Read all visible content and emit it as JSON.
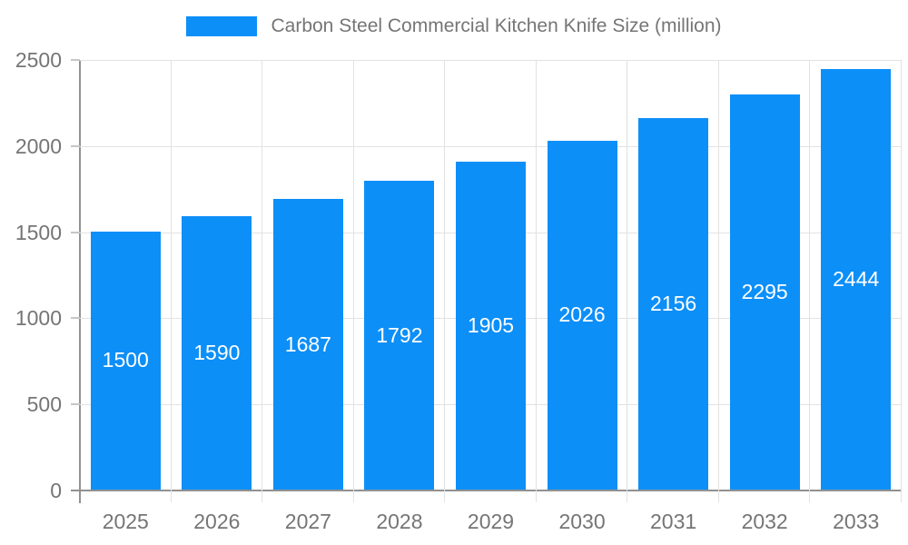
{
  "chart_data": {
    "type": "bar",
    "title": "Carbon Steel Commercial Kitchen Knife Size (million)",
    "legend_entries": [
      "Carbon Steel Commercial Kitchen Knife Size (million)"
    ],
    "legend_position": "top-center",
    "categories": [
      "2025",
      "2026",
      "2027",
      "2028",
      "2029",
      "2030",
      "2031",
      "2032",
      "2033"
    ],
    "values": [
      1500,
      1590,
      1687,
      1792,
      1905,
      2026,
      2156,
      2295,
      2444
    ],
    "value_labels_shown": true,
    "xlabel": "",
    "ylabel": "",
    "ylim": [
      0,
      2500
    ],
    "ytick_step": 500,
    "ytick_labels": [
      "0",
      "500",
      "1000",
      "1500",
      "2000",
      "2500"
    ],
    "grid": true,
    "colors": {
      "bar": "#0d8ff8",
      "value_label": "#ffffff",
      "axis_text": "#757575",
      "grid_line": "#e2e2e2",
      "axis_line": "#919191",
      "background": "#ffffff"
    }
  }
}
